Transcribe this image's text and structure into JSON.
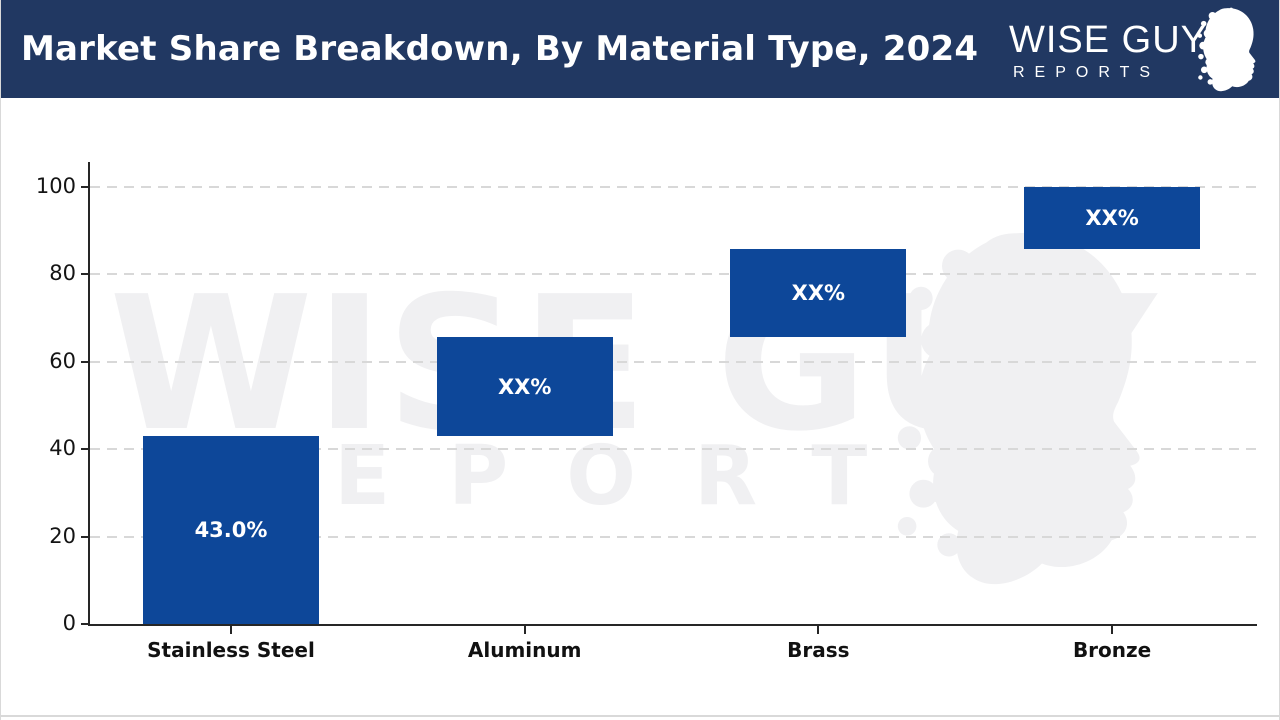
{
  "header": {
    "title": "Market Share Breakdown, By Material Type, 2024",
    "logo": {
      "line1": "WISE GUY",
      "line2": "REPORTS"
    }
  },
  "watermark": {
    "line1": "WISE GUY",
    "line2": "REPORTS"
  },
  "colors": {
    "header_bg": "#213862",
    "bar": "#0d4799",
    "gridline": "#d8d8d8",
    "axis": "#262626",
    "watermark": "#f0f0f2",
    "bar_label_text": "#ffffff"
  },
  "chart_data": {
    "type": "bar",
    "variant": "waterfall",
    "title": "Market Share Breakdown, By Material Type, 2024",
    "categories": [
      "Stainless Steel",
      "Aluminum",
      "Brass",
      "Bronze"
    ],
    "segments": [
      {
        "category": "Stainless Steel",
        "start": 0,
        "end": 43.0,
        "label": "43.0%"
      },
      {
        "category": "Aluminum",
        "start": 43.0,
        "end": 65.5,
        "label": "XX%"
      },
      {
        "category": "Brass",
        "start": 65.5,
        "end": 85.8,
        "label": "XX%"
      },
      {
        "category": "Bronze",
        "start": 85.8,
        "end": 100,
        "label": "XX%"
      }
    ],
    "ylim": [
      0,
      105
    ],
    "yticks": [
      0,
      20,
      40,
      60,
      80,
      100
    ],
    "xlabel": "",
    "ylabel": "",
    "grid": "dashed-horizontal",
    "legend": "none",
    "bar_color": "#0d4799"
  }
}
